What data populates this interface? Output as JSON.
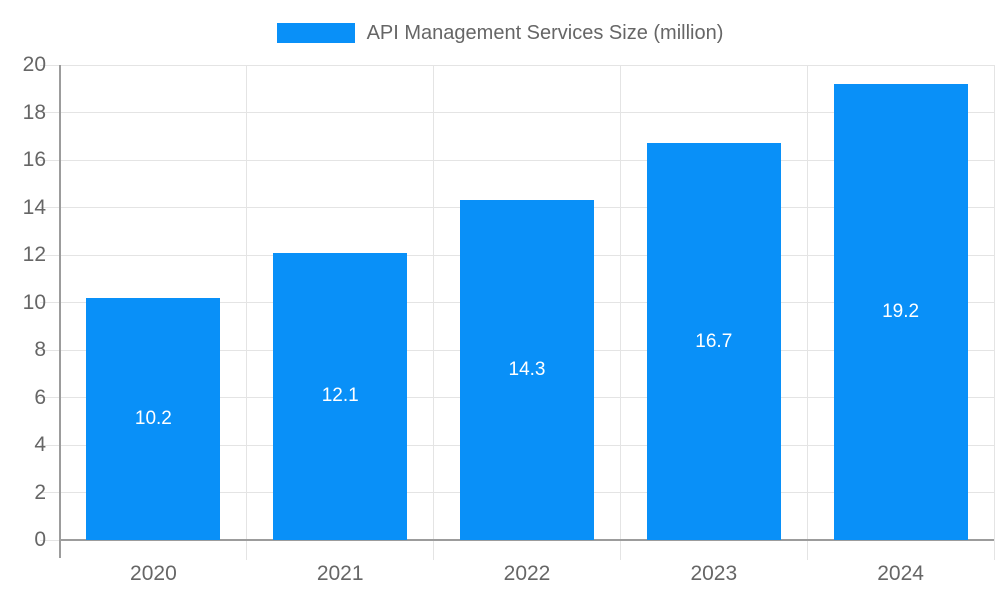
{
  "chart_data": {
    "type": "bar",
    "title": "",
    "xlabel": "",
    "ylabel": "",
    "categories": [
      "2020",
      "2021",
      "2022",
      "2023",
      "2024"
    ],
    "series": [
      {
        "name": "API Management Services Size (million)",
        "values": [
          10.2,
          12.1,
          14.3,
          16.7,
          19.2
        ]
      }
    ],
    "value_labels": [
      "10.2",
      "12.1",
      "14.3",
      "16.7",
      "19.2"
    ],
    "ylim": [
      0,
      20
    ],
    "ytick_step": 2,
    "ytick_labels": [
      "0",
      "2",
      "4",
      "6",
      "8",
      "10",
      "12",
      "14",
      "16",
      "18",
      "20"
    ],
    "grid": true,
    "legend_position": "top",
    "colors": {
      "bar": "#0990f8",
      "grid": "#e4e4e4",
      "axis": "#9c9c9c",
      "tick_text": "#666666",
      "value_text": "#ffffff",
      "legend_text": "#666666",
      "background": "#ffffff"
    }
  },
  "legend": {
    "label": "API Management Services Size (million)"
  }
}
